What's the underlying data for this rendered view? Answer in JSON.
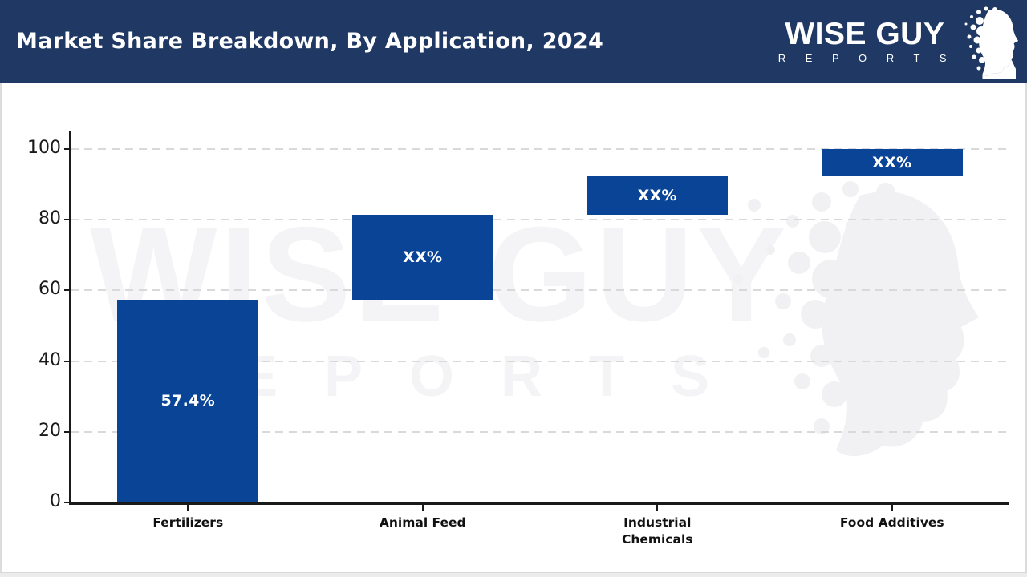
{
  "header": {
    "title": "Market Share Breakdown, By Application, 2024",
    "logo": {
      "line1": "WISE GUY",
      "line2": "R E P O R T S"
    }
  },
  "watermark": {
    "line1": "WISE GUY",
    "line2": "R E P O R T S"
  },
  "chart_data": {
    "type": "bar",
    "subtype": "waterfall",
    "title": "Market Share Breakdown, By Application, 2024",
    "categories": [
      "Fertilizers",
      "Animal Feed",
      "Industrial Chemicals",
      "Food Additives"
    ],
    "tick_labels": [
      "Fertilizers",
      "Animal Feed",
      "Industrial\nChemicals",
      "Food Additives"
    ],
    "segments": [
      {
        "category": "Fertilizers",
        "start": 0,
        "end": 57.4,
        "value_label": "57.4%"
      },
      {
        "category": "Animal Feed",
        "start": 57.4,
        "end": 81.4,
        "value_label": "XX%"
      },
      {
        "category": "Industrial Chemicals",
        "start": 81.4,
        "end": 92.5,
        "value_label": "XX%"
      },
      {
        "category": "Food Additives",
        "start": 92.5,
        "end": 100,
        "value_label": "XX%"
      }
    ],
    "xlabel": "",
    "ylabel": "",
    "ylim": [
      0,
      100
    ],
    "yticks": [
      0,
      20,
      40,
      60,
      80,
      100
    ],
    "grid": "horizontal-dashed",
    "legend": "none",
    "bar_color": "#0a4496",
    "bar_label_color": "#ffffff"
  },
  "colors": {
    "header_bg": "#1f3864",
    "axis": "#1a1a1a",
    "gridline": "#d9d9d9",
    "watermark": "#f4f4f6",
    "footer_strip": "#ececec"
  }
}
